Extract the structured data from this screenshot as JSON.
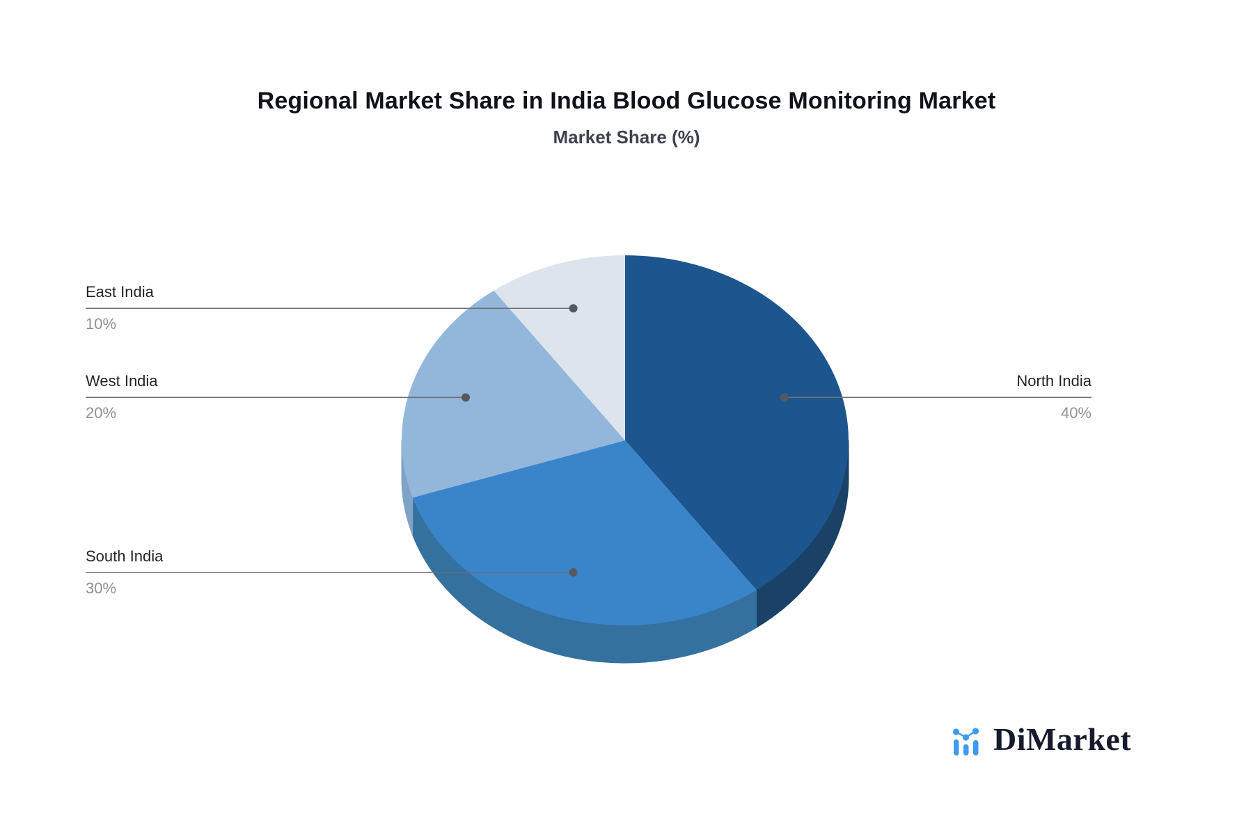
{
  "title": "Regional Market Share in India Blood Glucose Monitoring Market",
  "subtitle": "Market Share (%)",
  "chart_data": {
    "type": "pie",
    "title": "Regional Market Share in India Blood Glucose Monitoring Market",
    "subtitle": "Market Share (%)",
    "unit": "%",
    "style": "3d-pie",
    "start_angle": "12-o-clock",
    "direction": "clockwise",
    "legend_position": "none",
    "slices": [
      {
        "label": "North India",
        "value": 40,
        "display": "40%",
        "color": "#1D568F",
        "side_color": "#1A4166",
        "label_side": "right"
      },
      {
        "label": "South India",
        "value": 30,
        "display": "30%",
        "color": "#3A85CA",
        "side_color": "#34719F",
        "label_side": "left"
      },
      {
        "label": "West India",
        "value": 20,
        "display": "20%",
        "color": "#93B7DB",
        "side_color": "#7FA3C6",
        "label_side": "left"
      },
      {
        "label": "East India",
        "value": 10,
        "display": "10%",
        "color": "#DCE4EE",
        "side_color": "#C2CEDE",
        "label_side": "left"
      }
    ],
    "leader_line_color": "#6E6F73",
    "leader_dot_color": "#57585C",
    "label_text_color": "#212428",
    "value_text_color": "#8E9297"
  },
  "logo": {
    "text": "DiMarket",
    "icon": "bar-chart-with-trend-dots-icon",
    "icon_color": "#3E9BF0",
    "text_color": "#151B2C"
  }
}
